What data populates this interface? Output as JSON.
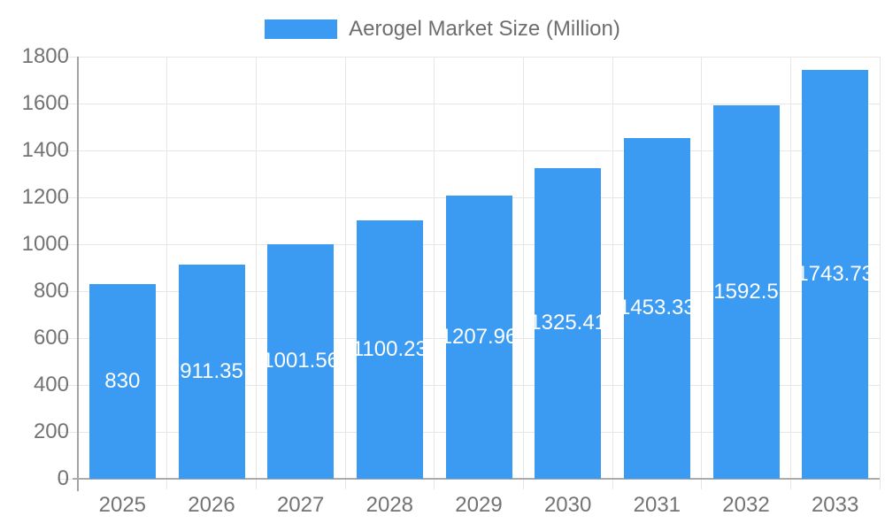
{
  "chart_data": {
    "type": "bar",
    "title": "Aerogel Market Size (Million)",
    "legend": {
      "label": "Aerogel Market Size (Million)",
      "position": "top-center"
    },
    "categories": [
      "2025",
      "2026",
      "2027",
      "2028",
      "2029",
      "2030",
      "2031",
      "2032",
      "2033"
    ],
    "values": [
      830,
      911.35,
      1001.56,
      1100.23,
      1207.96,
      1325.41,
      1453.33,
      1592.5,
      1743.73
    ],
    "value_labels": [
      "830",
      "911.35",
      "1001.56",
      "1100.23",
      "1207.96",
      "1325.41",
      "1453.33",
      "1592.5",
      "1743.73"
    ],
    "xlabel": "",
    "ylabel": "",
    "ylim": [
      0,
      1800
    ],
    "yticks": [
      0,
      200,
      400,
      600,
      800,
      1000,
      1200,
      1400,
      1600,
      1800
    ],
    "grid": true,
    "colors": {
      "bar": "#3b9af1",
      "bar_label": "#ffffff",
      "gridline": "#e6e6e6",
      "axis_line": "#a6a6a6",
      "tick_label": "#737373",
      "legend_text": "#6e6e6e",
      "background": "#ffffff"
    }
  }
}
